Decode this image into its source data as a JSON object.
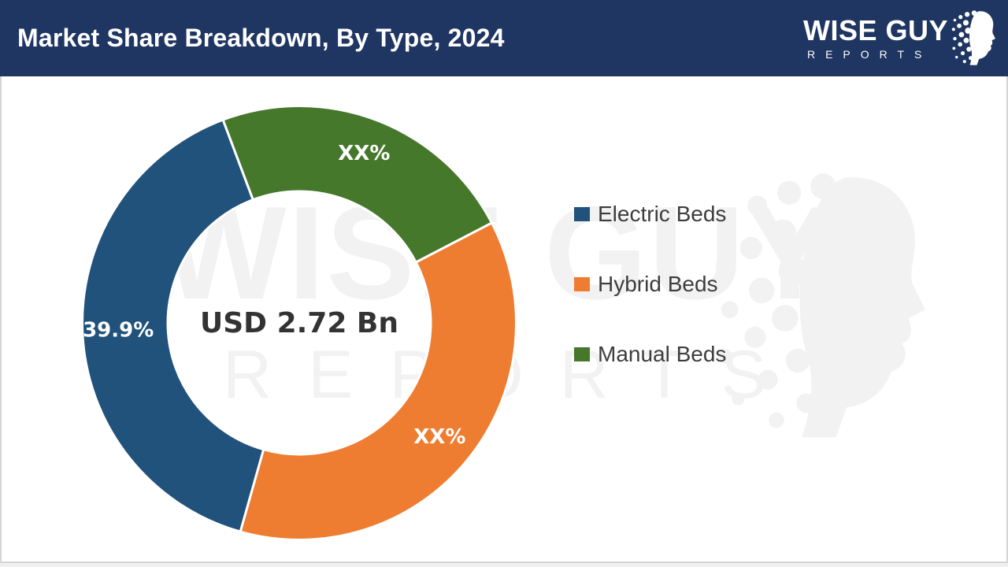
{
  "header": {
    "title": "Market Share Breakdown, By Type, 2024",
    "bg_color": "#1F3562",
    "logo": {
      "wordmark": "WISE GUY",
      "subtext": "REPORTS"
    }
  },
  "chart_data": {
    "type": "pie",
    "subtype": "donut",
    "title": "Market Share Breakdown, By Type, 2024",
    "center_label": "USD 2.72 Bn",
    "start_angle_deg": -20.6,
    "donut_hole_ratio": 0.6,
    "legend_position": "right",
    "segments": [
      {
        "name": "Manual Beds",
        "value": 23.1,
        "label": "XX%",
        "color": "#45782B"
      },
      {
        "name": "Hybrid Beds",
        "value": 37.0,
        "label": "XX%",
        "color": "#EE7D31"
      },
      {
        "name": "Electric Beds",
        "value": 39.9,
        "label": "39.9%",
        "color": "#21527B"
      }
    ]
  },
  "legend": {
    "items": [
      {
        "label": "Electric Beds",
        "color": "#21527B"
      },
      {
        "label": "Hybrid Beds",
        "color": "#EE7D31"
      },
      {
        "label": "Manual Beds",
        "color": "#45782B"
      }
    ]
  },
  "watermark": {
    "line1": "WISE GUY",
    "line2": "REPORTS"
  }
}
